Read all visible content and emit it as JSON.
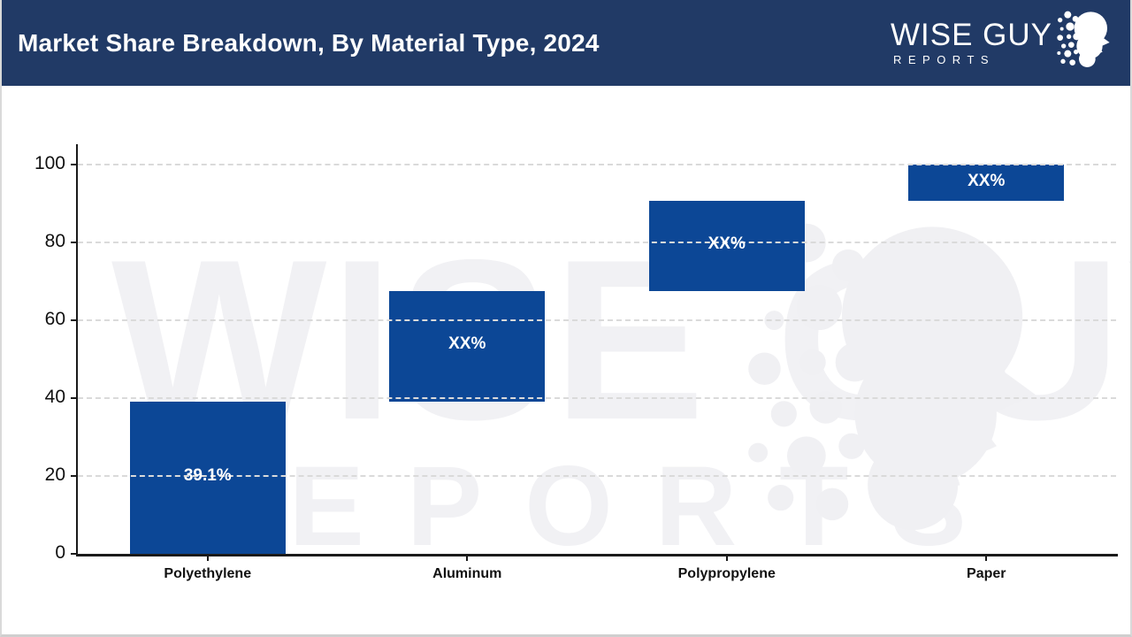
{
  "header": {
    "title": "Market Share Breakdown, By Material Type, 2024",
    "logo_line1": "WISE GUY",
    "logo_line2": "REPORTS"
  },
  "watermark": {
    "line1": "WISE GUY",
    "line2": "REPORTS"
  },
  "colors": {
    "header_bg": "#213A66",
    "bar_blue": "#0C4796",
    "gridline": "#DADADA",
    "watermark_gray": "#F1F1F4"
  },
  "chart_data": {
    "type": "bar",
    "subtype": "floating-segment-waterfall",
    "title": "Market Share Breakdown, By Material Type, 2024",
    "categories": [
      "Polyethylene",
      "Aluminum",
      "Polypropylene",
      "Paper"
    ],
    "segments": [
      {
        "category": "Polyethylene",
        "start": 0,
        "end": 39.1,
        "label": "39.1%"
      },
      {
        "category": "Aluminum",
        "start": 39.1,
        "end": 67.5,
        "label": "XX%"
      },
      {
        "category": "Polypropylene",
        "start": 67.5,
        "end": 90.6,
        "label": "XX%"
      },
      {
        "category": "Paper",
        "start": 90.6,
        "end": 100,
        "label": "XX%"
      }
    ],
    "yticks": [
      0,
      20,
      40,
      60,
      80,
      100
    ],
    "ylim": [
      0,
      100
    ],
    "xlabel": "",
    "ylabel": "",
    "legend": "none",
    "grid": "horizontal-dashed",
    "bar_color": "#0C4796"
  }
}
